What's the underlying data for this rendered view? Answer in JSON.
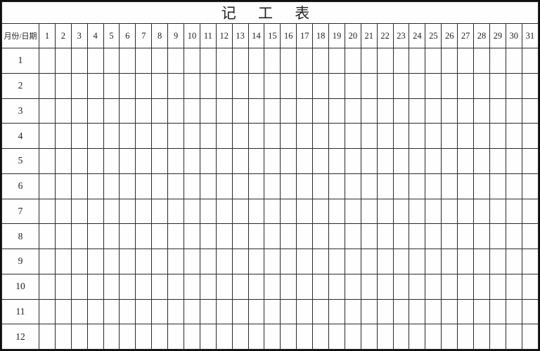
{
  "title": "记 工 表",
  "table": {
    "corner_header": "月份/日期",
    "day_headers": [
      "1",
      "2",
      "3",
      "4",
      "5",
      "6",
      "7",
      "8",
      "9",
      "10",
      "11",
      "12",
      "13",
      "14",
      "15",
      "16",
      "17",
      "18",
      "19",
      "20",
      "21",
      "22",
      "23",
      "24",
      "25",
      "26",
      "27",
      "28",
      "29",
      "30",
      "31"
    ],
    "month_rows": [
      "1",
      "2",
      "3",
      "4",
      "5",
      "6",
      "7",
      "8",
      "9",
      "10",
      "11",
      "12"
    ]
  },
  "colors": {
    "outer_border": "#0e0e0e",
    "grid_line": "#2a2a2a",
    "background": "#fefefe",
    "text": "#222222"
  }
}
